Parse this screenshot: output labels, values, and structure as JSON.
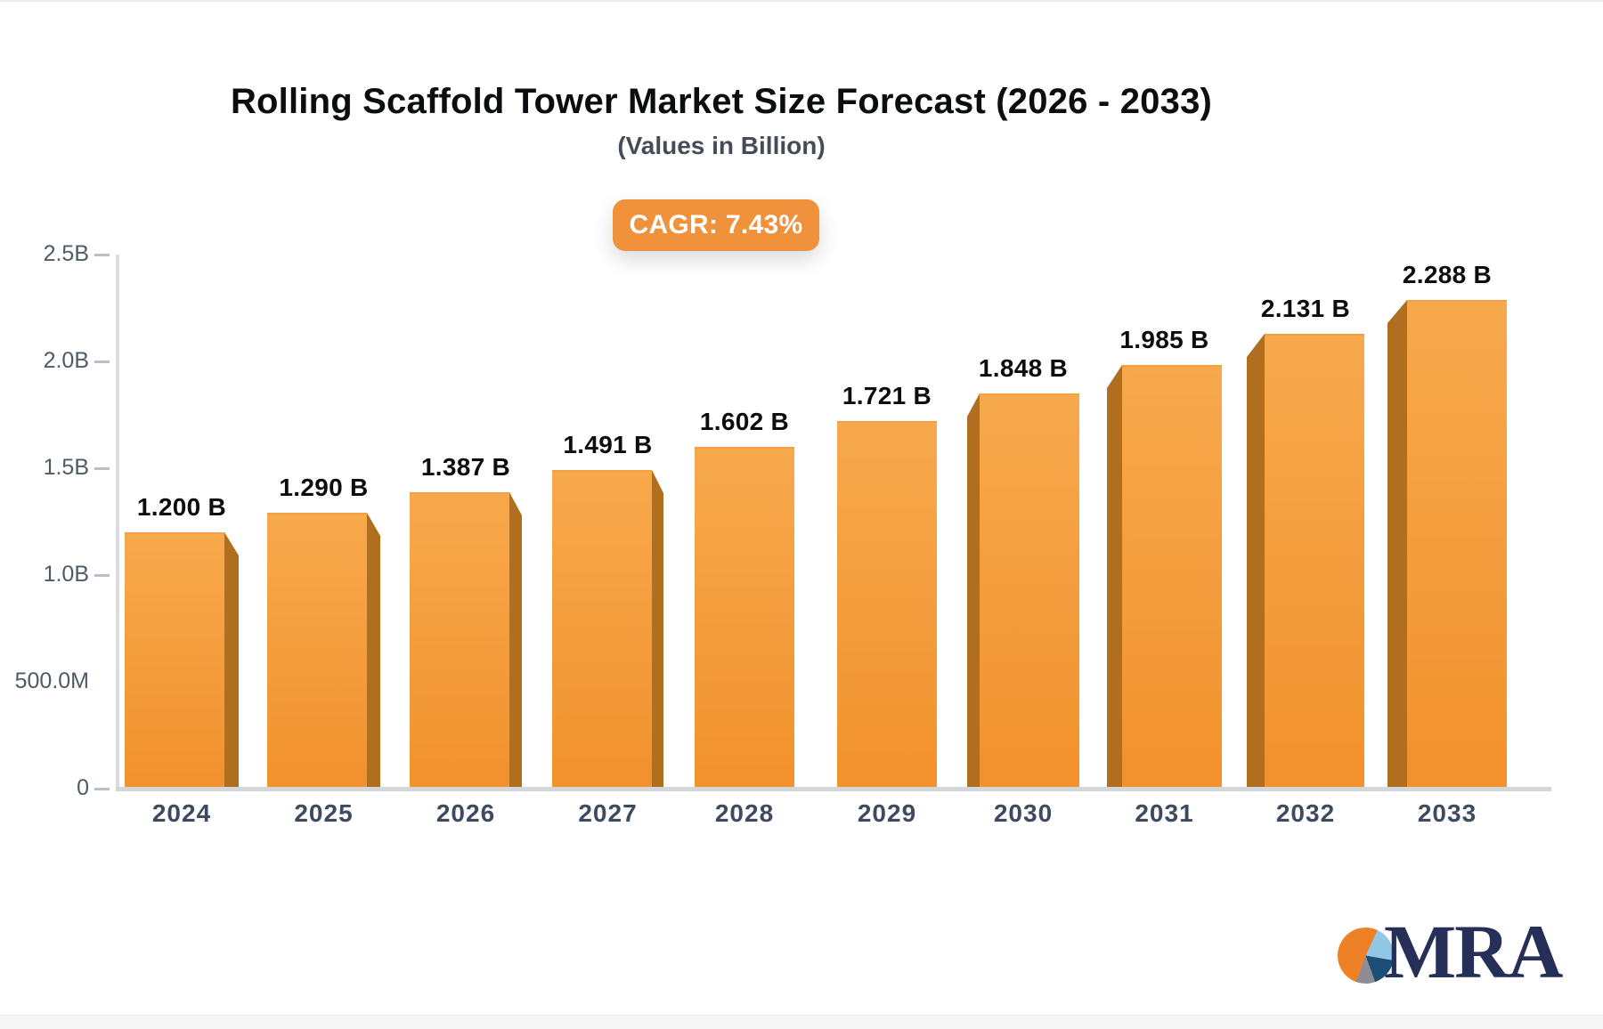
{
  "title": "Rolling Scaffold Tower Market Size Forecast (2026 - 2033)",
  "subtitle": "(Values in Billion)",
  "cagr_label": "CAGR: 7.43%",
  "chart_data": {
    "type": "bar",
    "title": "Rolling Scaffold Tower Market Size Forecast (2026 - 2033)",
    "subtitle": "(Values in Billion)",
    "cagr_percent": "7.43%",
    "categories": [
      "2024",
      "2025",
      "2026",
      "2027",
      "2028",
      "2029",
      "2030",
      "2031",
      "2032",
      "2033"
    ],
    "values": [
      1.2,
      1.29,
      1.387,
      1.491,
      1.602,
      1.721,
      1.848,
      1.985,
      2.131,
      2.288
    ],
    "value_labels": [
      "1.200 B",
      "1.290 B",
      "1.387 B",
      "1.491 B",
      "1.602 B",
      "1.721 B",
      "1.848 B",
      "1.985 B",
      "2.131 B",
      "2.288 B"
    ],
    "xlabel": "",
    "ylabel": "",
    "ylim": [
      0,
      2.5
    ],
    "y_ticks": [
      {
        "label": "2.5B",
        "value": 2.5,
        "dash": true
      },
      {
        "label": "2.0B",
        "value": 2.0,
        "dash": true
      },
      {
        "label": "1.5B",
        "value": 1.5,
        "dash": true
      },
      {
        "label": "1.0B",
        "value": 1.0,
        "dash": true
      },
      {
        "label": "500.0M",
        "value": 0.5,
        "dash": false
      },
      {
        "label": "0",
        "value": 0.0,
        "dash": true
      }
    ],
    "grid": false,
    "legend": false,
    "bar_style": "3d-perspective"
  },
  "logo": {
    "text": "MRA"
  },
  "colors": {
    "bar_face_top": "#F7A94C",
    "bar_face_bottom": "#F1912D",
    "bar_side": "#B06F1F",
    "badge": "#F0913B",
    "axis": "#D8DBE0",
    "tick": "#B9BFC7",
    "value_label": "#0D0D0F",
    "year_label": "#3D4A5F",
    "y_label": "#4E5A68",
    "pie_orange": "#EE8125",
    "pie_lightblue": "#92C7E8",
    "pie_navy": "#1D4E78",
    "pie_gray": "#8E8D95",
    "logo_text": "#262F58"
  }
}
